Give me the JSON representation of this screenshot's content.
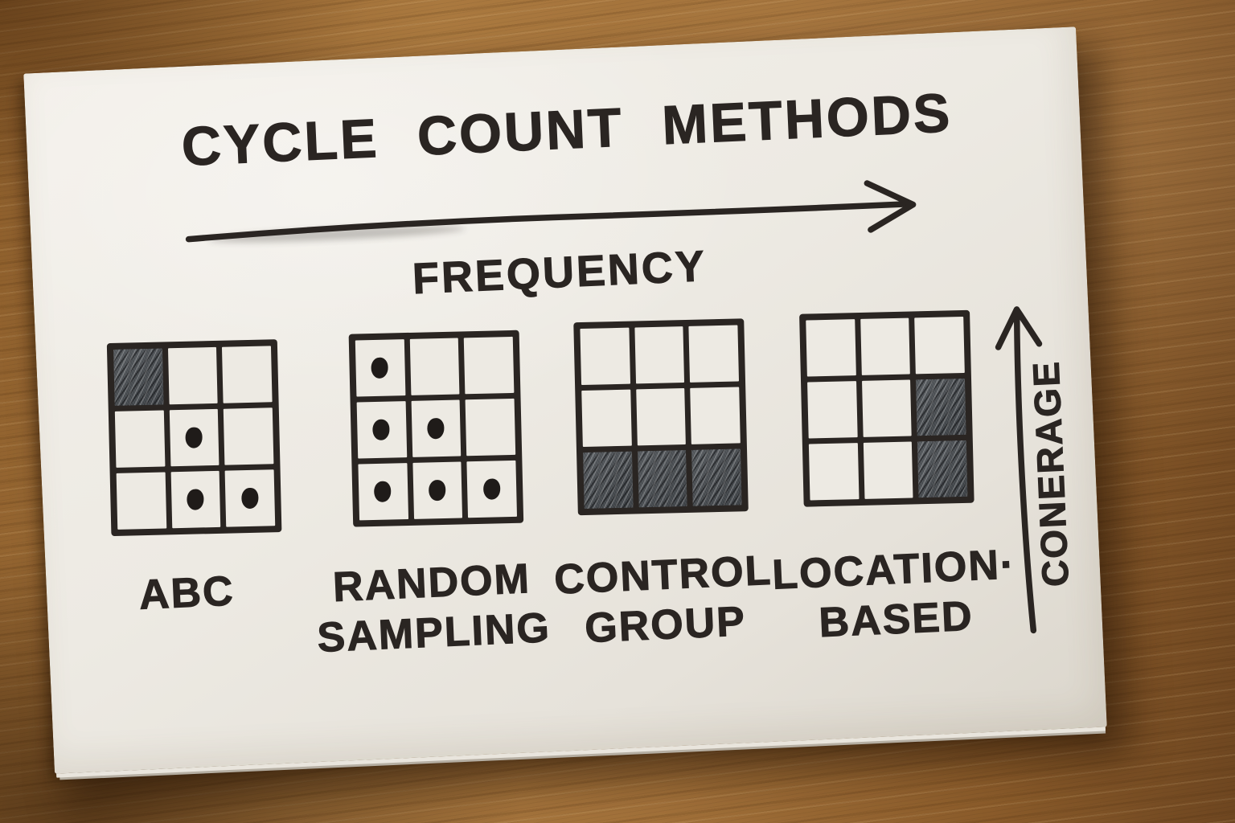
{
  "title": "CYCLE COUNT METHODS",
  "x_axis": {
    "label": "FREQUENCY",
    "direction": "right"
  },
  "y_axis": {
    "label": "CONERAGE",
    "direction": "up"
  },
  "methods": [
    {
      "id": "abc",
      "label_lines": [
        "ABC"
      ],
      "grid": {
        "rows": 3,
        "cols": 3,
        "shaded_cells": [
          [
            0,
            0
          ]
        ],
        "dot_cells": [
          [
            1,
            1
          ],
          [
            2,
            1
          ],
          [
            2,
            2
          ]
        ]
      }
    },
    {
      "id": "random-sampling",
      "label_lines": [
        "RANDOM",
        "SAMPLING"
      ],
      "grid": {
        "rows": 3,
        "cols": 3,
        "shaded_cells": [],
        "dot_cells": [
          [
            0,
            0
          ],
          [
            1,
            0
          ],
          [
            1,
            1
          ],
          [
            2,
            0
          ],
          [
            2,
            1
          ],
          [
            2,
            2
          ]
        ]
      }
    },
    {
      "id": "control-group",
      "label_lines": [
        "CONTROL",
        "GROUP"
      ],
      "grid": {
        "rows": 3,
        "cols": 3,
        "shaded_cells": [
          [
            2,
            0
          ],
          [
            2,
            1
          ],
          [
            2,
            2
          ]
        ],
        "dot_cells": []
      }
    },
    {
      "id": "location-based",
      "label_lines": [
        "LOCATION·",
        "BASED"
      ],
      "grid": {
        "rows": 3,
        "cols": 3,
        "shaded_cells": [
          [
            1,
            2
          ],
          [
            2,
            2
          ]
        ],
        "dot_cells": []
      }
    }
  ],
  "colors": {
    "ink": "#2a2522",
    "paper": "#edeae3",
    "graphite": "#4a4e52",
    "wood": "#9a6b33"
  }
}
